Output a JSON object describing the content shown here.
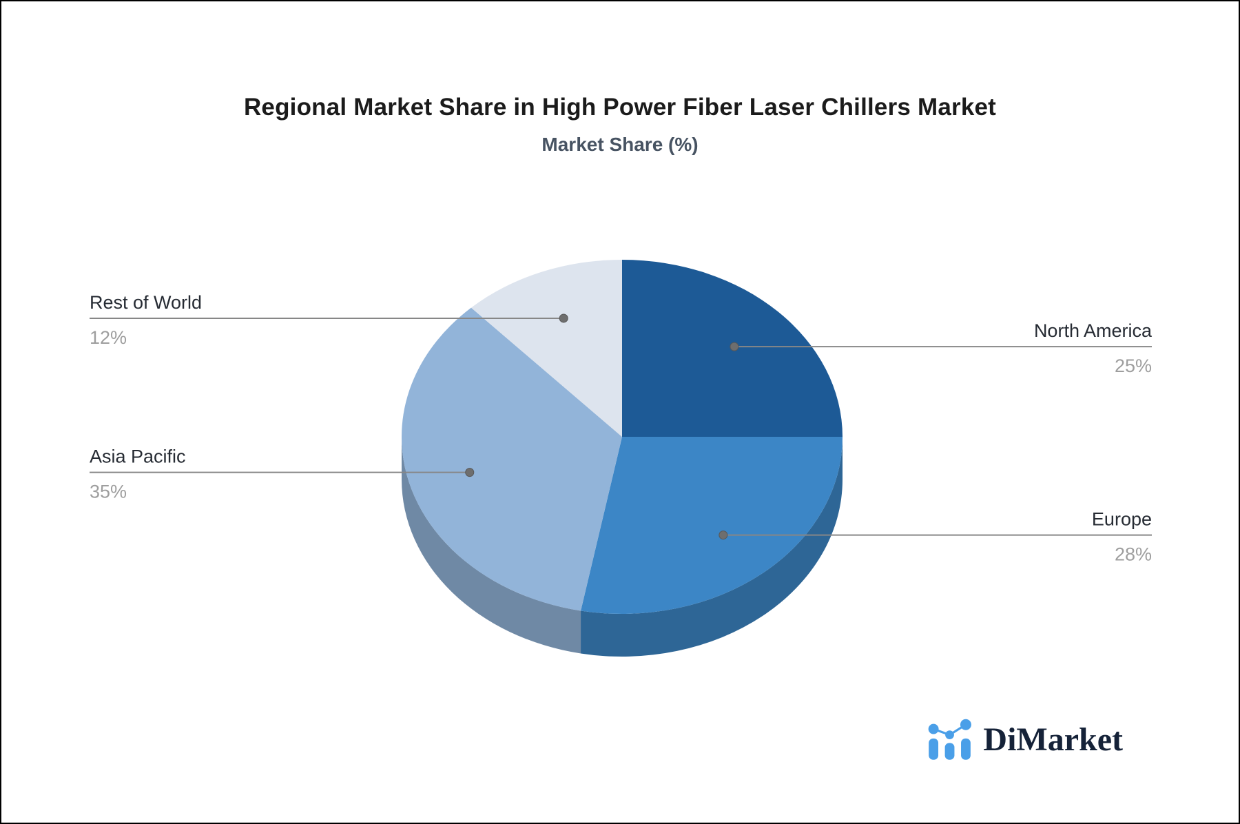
{
  "page": {
    "background": "#ffffff",
    "border_color": "#000000"
  },
  "chart_data": {
    "type": "pie",
    "title": "Regional Market Share in High Power Fiber Laser Chillers Market",
    "subtitle": "Market Share (%)",
    "unit": "%",
    "effect_3d": true,
    "start_angle_deg": 0,
    "direction": "clockwise",
    "slices": [
      {
        "label": "North America",
        "value": 25,
        "display": "25%",
        "color": "#1d5a96"
      },
      {
        "label": "Europe",
        "value": 28,
        "display": "28%",
        "color": "#3c86c6"
      },
      {
        "label": "Asia Pacific",
        "value": 35,
        "display": "35%",
        "color": "#92b4d9"
      },
      {
        "label": "Rest of World",
        "value": 12,
        "display": "12%",
        "color": "#dde4ee"
      }
    ],
    "style": {
      "leader_line_color": "#878787",
      "leader_dot_color": "#6e6e6e",
      "label_color": "#262b33",
      "value_color": "#9e9e9e"
    }
  },
  "branding": {
    "logo_text": "DiMarket",
    "logo_icon": "mini-bar-line-chart-icon",
    "logo_icon_color": "#4a9fe8",
    "logo_text_color": "#152238"
  }
}
